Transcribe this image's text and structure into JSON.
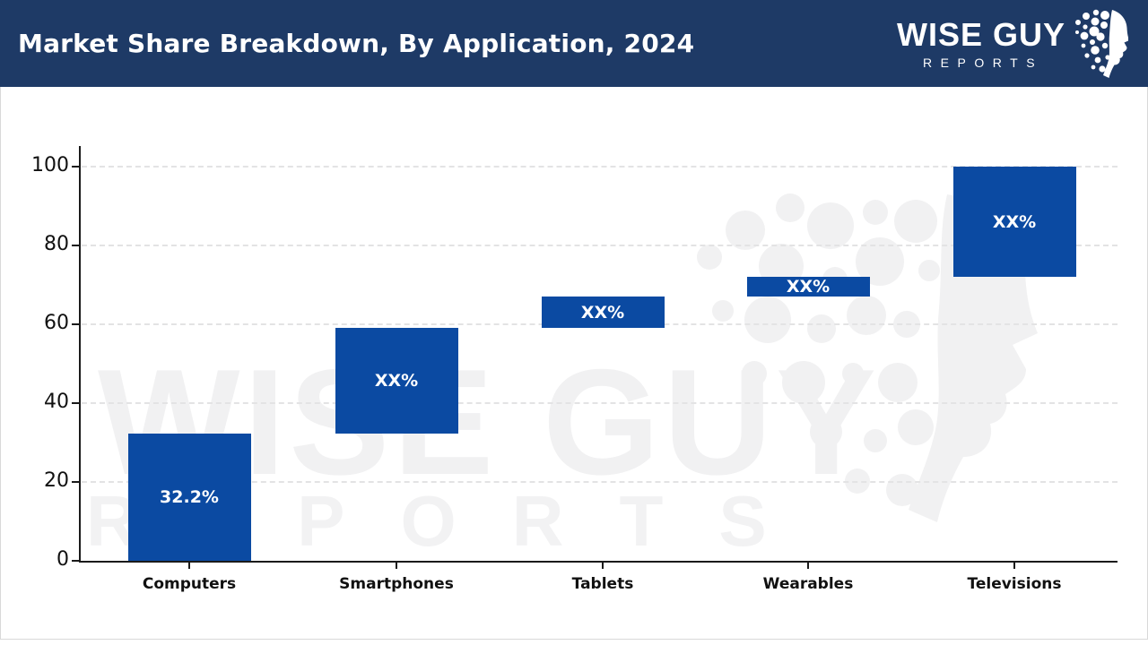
{
  "header": {
    "title": "Market Share Breakdown, By Application, 2024",
    "bg_color": "#1e3a66",
    "logo": {
      "line1": "WISE GUY",
      "line2": "REPORTS"
    }
  },
  "watermark": {
    "line1": "WISE GUY",
    "line2": "REPORTS"
  },
  "chart_data": {
    "type": "bar",
    "subtype": "waterfall",
    "title": "Market Share Breakdown, By Application, 2024",
    "categories": [
      "Computers",
      "Smartphones",
      "Tablets",
      "Wearables",
      "Televisions"
    ],
    "bars": [
      {
        "category": "Computers",
        "start": 0,
        "end": 32.2,
        "label": "32.2%"
      },
      {
        "category": "Smartphones",
        "start": 32.2,
        "end": 59,
        "label": "XX%"
      },
      {
        "category": "Tablets",
        "start": 59,
        "end": 67,
        "label": "XX%"
      },
      {
        "category": "Wearables",
        "start": 67,
        "end": 72,
        "label": "XX%"
      },
      {
        "category": "Televisions",
        "start": 72,
        "end": 100,
        "label": "XX%"
      }
    ],
    "yticks": [
      0,
      20,
      40,
      60,
      80,
      100
    ],
    "ylim": [
      0,
      105
    ],
    "xlabel": "",
    "ylabel": "",
    "grid": "horizontal dashed",
    "legend": "none",
    "bar_color": "#0b4aa2",
    "bar_label_color": "#ffffff",
    "axis_color": "#1a1a1a",
    "grid_color": "#e3e3e4"
  }
}
